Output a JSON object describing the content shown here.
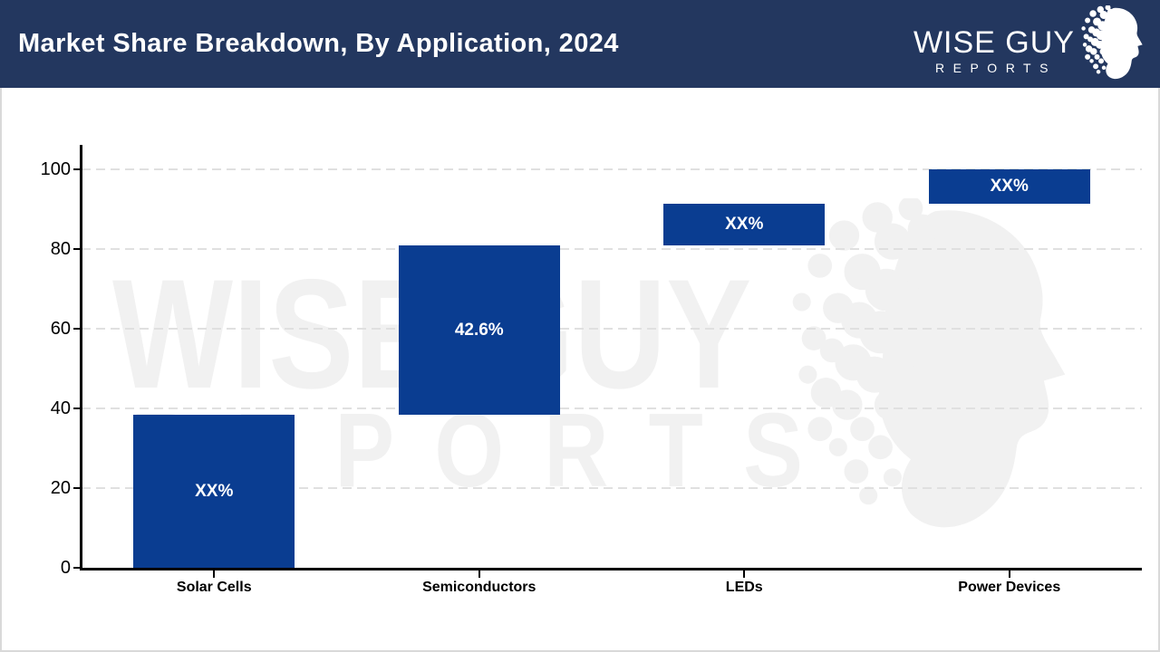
{
  "header": {
    "title": "Market Share Breakdown, By Application, 2024",
    "brand": {
      "line1": "WISE GUY",
      "line2": "REPORTS"
    }
  },
  "watermark": {
    "line1": "WISE GUY",
    "line2": "REPORTS"
  },
  "colors": {
    "header_bg": "#23375f",
    "bar": "#0a3d91",
    "bar_label": "#ffffff",
    "grid": "#e0e0e0",
    "axis": "#000000",
    "watermark": "#f1f1f1",
    "page_border": "#d9d9d9",
    "title_text": "#ffffff"
  },
  "chart_data": {
    "type": "bar",
    "subtype": "waterfall",
    "title": "Market Share Breakdown, By Application, 2024",
    "categories": [
      "Solar Cells",
      "Semiconductors",
      "LEDs",
      "Power Devices"
    ],
    "segments": [
      {
        "category": "Solar Cells",
        "start": 0,
        "end": 38.3,
        "label": "XX%"
      },
      {
        "category": "Semiconductors",
        "start": 38.3,
        "end": 80.9,
        "label": "42.6%"
      },
      {
        "category": "LEDs",
        "start": 80.9,
        "end": 91.3,
        "label": "XX%"
      },
      {
        "category": "Power Devices",
        "start": 91.3,
        "end": 100,
        "label": "XX%"
      }
    ],
    "yticks": [
      0,
      20,
      40,
      60,
      80,
      100
    ],
    "ylim": [
      0,
      106
    ],
    "xlabel": "",
    "ylabel": "",
    "grid": "horizontal-dashed",
    "legend": "none"
  }
}
